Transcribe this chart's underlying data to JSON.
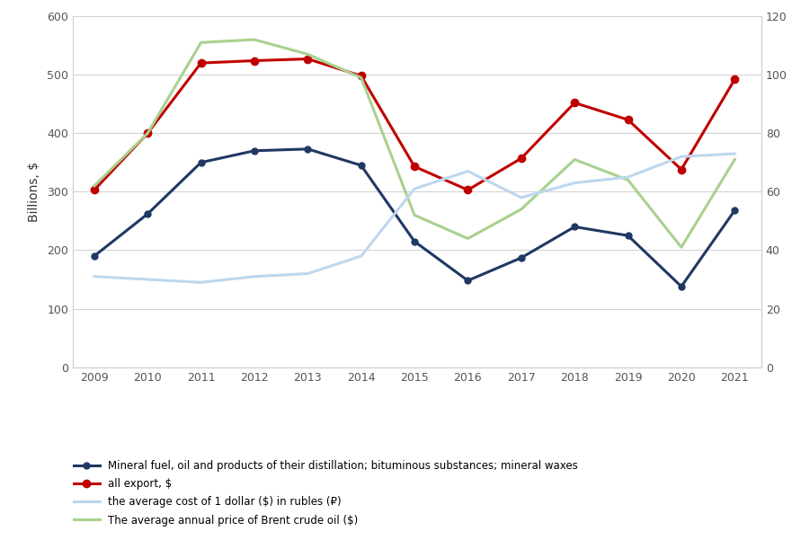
{
  "years": [
    2009,
    2010,
    2011,
    2012,
    2013,
    2014,
    2015,
    2016,
    2017,
    2018,
    2019,
    2020,
    2021
  ],
  "mineral_fuel": [
    190,
    262,
    350,
    370,
    373,
    345,
    215,
    148,
    187,
    240,
    225,
    138,
    268
  ],
  "all_export": [
    303,
    400,
    520,
    524,
    527,
    498,
    343,
    303,
    357,
    452,
    423,
    338,
    492
  ],
  "dollar_ruble_actual": [
    31,
    30,
    29,
    31,
    32,
    38,
    61,
    67,
    58,
    63,
    65,
    72,
    73
  ],
  "brent_actual": [
    62,
    80,
    111,
    112,
    107,
    99,
    52,
    44,
    54,
    71,
    64,
    41,
    71
  ],
  "mineral_fuel_label": "Mineral fuel, oil and products of their distillation; bituminous substances; mineral waxes",
  "all_export_label": "all export, $",
  "dollar_ruble_label": "the average cost of 1 dollar ($) in rubles (₽)",
  "brent_label": "The average annual price of Brent crude oil ($)",
  "ylabel_left": "Billions, $",
  "ylim_left": [
    0,
    600
  ],
  "ylim_right": [
    0,
    120
  ],
  "yticks_left": [
    0,
    100,
    200,
    300,
    400,
    500,
    600
  ],
  "yticks_right": [
    0,
    20,
    40,
    60,
    80,
    100,
    120
  ],
  "color_mineral": "#1f3864",
  "color_export": "#c00000",
  "color_dollar": "#bdd7ee",
  "color_brent": "#a9d18e",
  "bg_color": "#ffffff",
  "grid_color": "#d3d3d3"
}
